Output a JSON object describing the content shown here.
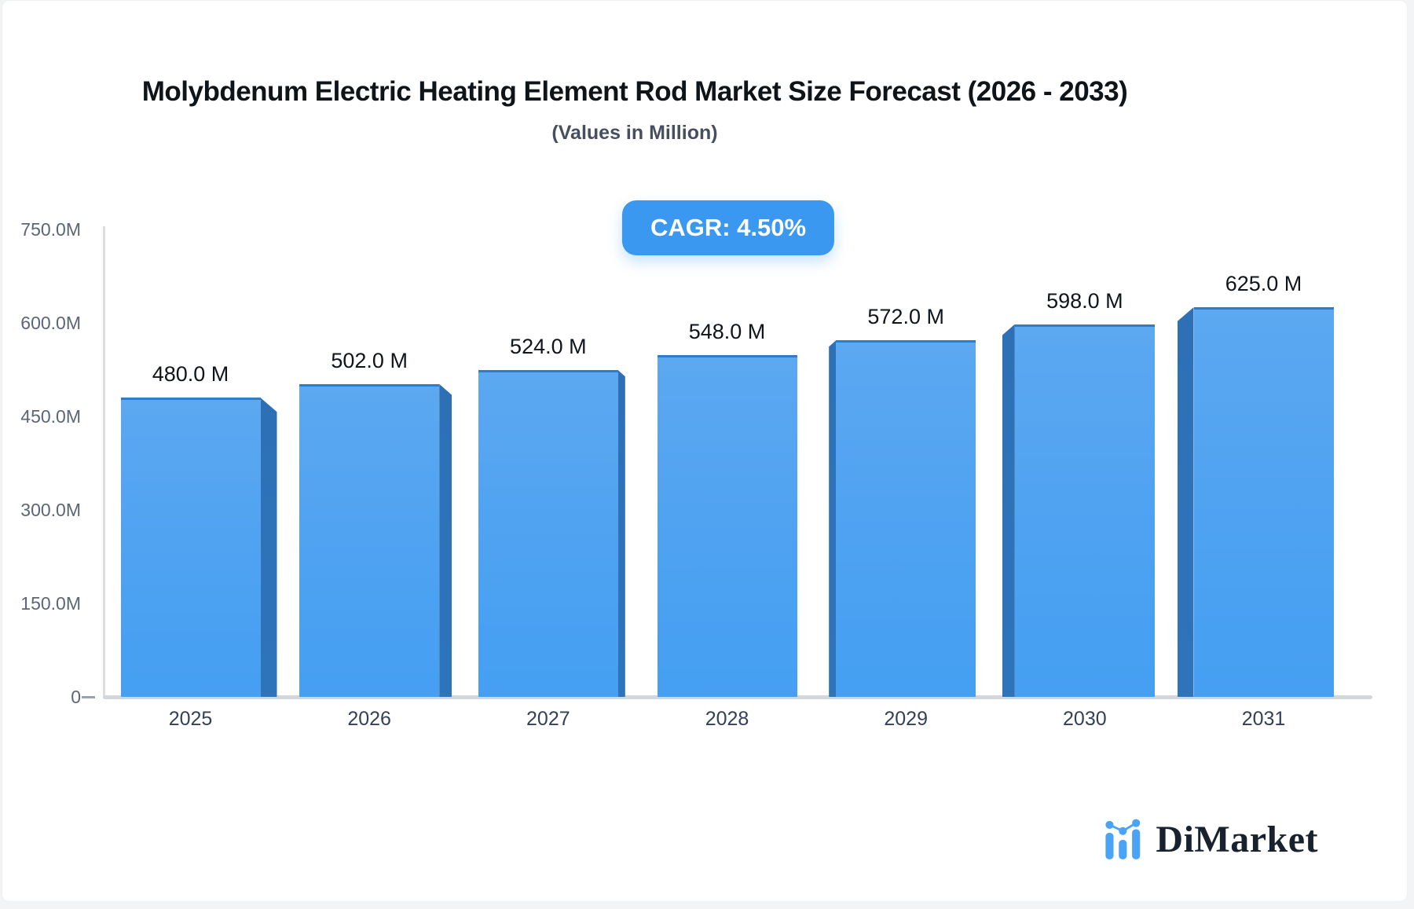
{
  "header": {
    "title": "Molybdenum Electric Heating Element Rod Market Size Forecast (2026 - 2033)",
    "subtitle": "(Values in Million)",
    "cagr_badge": "CAGR: 4.50%"
  },
  "chart_data": {
    "type": "bar",
    "title": "Molybdenum Electric Heating Element Rod Market Size Forecast (2026 - 2033)",
    "subtitle": "(Values in Million)",
    "annotation": "CAGR: 4.50%",
    "categories": [
      "2025",
      "2026",
      "2027",
      "2028",
      "2029",
      "2030",
      "2031"
    ],
    "values": [
      480,
      502,
      524,
      548,
      572,
      598,
      625
    ],
    "bar_labels": [
      "480.0 M",
      "502.0 M",
      "524.0 M",
      "548.0 M",
      "572.0 M",
      "598.0 M",
      "625.0 M"
    ],
    "unit": "Million",
    "xlabel": "",
    "ylabel": "",
    "ylim": [
      0,
      750
    ],
    "y_ticks": [
      {
        "value": 0,
        "label": "0"
      },
      {
        "value": 150,
        "label": "150.0M"
      },
      {
        "value": 300,
        "label": "300.0M"
      },
      {
        "value": 450,
        "label": "450.0M"
      },
      {
        "value": 600,
        "label": "600.0M"
      },
      {
        "value": 750,
        "label": "750.0M"
      }
    ],
    "grid": false,
    "legend": false,
    "style": "3d-perspective-bars-center-vanishing-point"
  },
  "colors": {
    "bar_face_top": "#5ca8f1",
    "bar_face_bottom": "#459ff2",
    "bar_top_edge": "#2e7dc9",
    "bar_side": "#2d70b6",
    "badge_background": "#3b98f0",
    "badge_text": "#ffffff",
    "axis_line": "#d3d7db",
    "y_label_text": "#5b6676",
    "x_label_text": "#33405a",
    "logo_blue": "#4aa3f7",
    "logo_navy": "#18222f"
  },
  "branding": {
    "logo_text": "DiMarket"
  }
}
